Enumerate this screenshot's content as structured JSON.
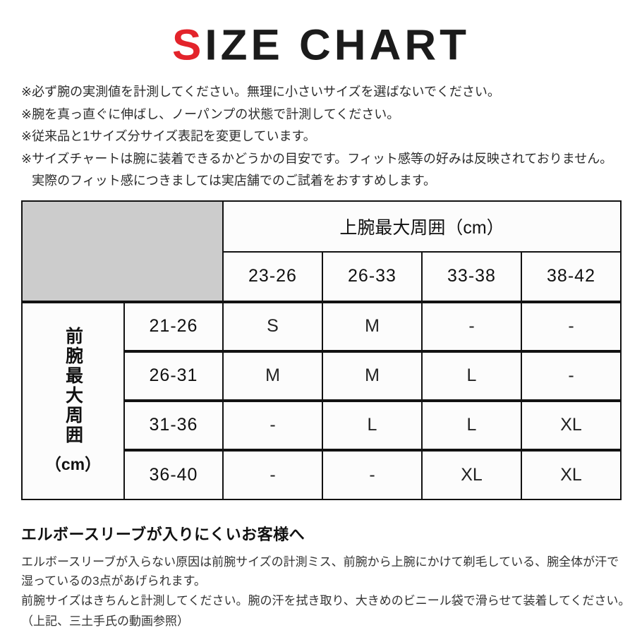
{
  "title": {
    "first_letter": "S",
    "rest": "IZE CHART",
    "accent_color": "#e3242b"
  },
  "notes": [
    {
      "marker": "※",
      "lines": [
        "必ず腕の実測値を計測してください。無理に小さいサイズを選ばないでください。"
      ]
    },
    {
      "marker": "※",
      "lines": [
        "腕を真っ直ぐに伸ばし、ノーパンプの状態で計測してください。"
      ]
    },
    {
      "marker": "※",
      "lines": [
        "従来品と1サイズ分サイズ表記を変更しています。"
      ]
    },
    {
      "marker": "※",
      "lines": [
        "サイズチャートは腕に装着できるかどうかの目安です。フィット感等の好みは反映されておりません。",
        "実際のフィット感につきましては実店舗でのご試着をおすすめします。"
      ]
    }
  ],
  "chart_data": {
    "type": "table",
    "title": "SIZE CHART",
    "column_group_label": "上腕最大周囲（cm）",
    "row_group_label": "前腕最大周囲",
    "row_group_unit": "（cm）",
    "columns": [
      "23-26",
      "26-33",
      "33-38",
      "38-42"
    ],
    "rows": [
      {
        "range": "21-26",
        "sizes": [
          "S",
          "M",
          "-",
          "-"
        ]
      },
      {
        "range": "26-31",
        "sizes": [
          "M",
          "M",
          "L",
          "-"
        ]
      },
      {
        "range": "31-36",
        "sizes": [
          "-",
          "L",
          "L",
          "XL"
        ]
      },
      {
        "range": "36-40",
        "sizes": [
          "-",
          "-",
          "XL",
          "XL"
        ]
      }
    ],
    "corner_cell_color": "#cccccc"
  },
  "footer": {
    "heading": "エルボースリーブが入りにくいお客様へ",
    "paragraph1_lines": [
      "エルボースリーブが入らない原因は前腕サイズの計測ミス、前腕から上腕にかけて剃毛している、腕全体が汗で",
      "湿っているの3点があげられます。"
    ],
    "paragraph2": "前腕サイズはきちんと計測してください。腕の汗を拭き取り、大きめのビニール袋で滑らせて装着してください。",
    "reference": "（上記、三土手氏の動画参照）"
  }
}
